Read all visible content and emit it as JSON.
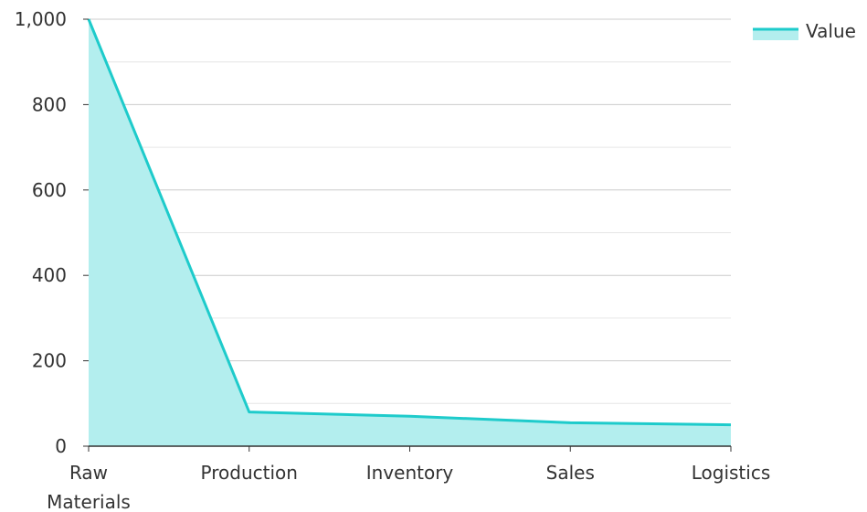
{
  "chart_data": {
    "type": "area",
    "categories": [
      "Raw Materials",
      "Production",
      "Inventory",
      "Sales",
      "Logistics"
    ],
    "series": [
      {
        "name": "Value",
        "values": [
          1000,
          80,
          70,
          55,
          50
        ]
      }
    ],
    "ylim": [
      0,
      1000
    ],
    "yticks": [
      0,
      200,
      400,
      600,
      800,
      1000
    ],
    "ytick_labels": [
      "0",
      "200",
      "400",
      "600",
      "800",
      "1,000"
    ],
    "grid": true,
    "legend": "top-right",
    "colors": {
      "line": "#1ecbcb",
      "fill": "#b3eeee",
      "grid": "#cccccc",
      "minor_grid": "#e6e6e6",
      "axis": "#333333"
    }
  }
}
